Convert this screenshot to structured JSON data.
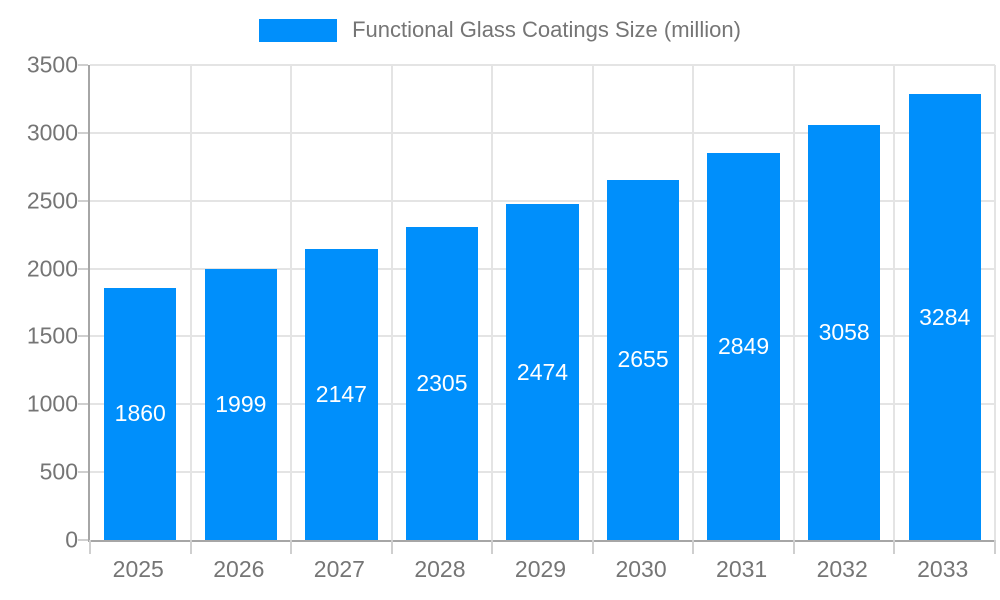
{
  "chart_data": {
    "type": "bar",
    "title": "Functional Glass Coatings Size (million)",
    "categories": [
      "2025",
      "2026",
      "2027",
      "2028",
      "2029",
      "2030",
      "2031",
      "2032",
      "2033"
    ],
    "values": [
      1860,
      1999,
      2147,
      2305,
      2474,
      2655,
      2849,
      3058,
      3284
    ],
    "xlabel": "",
    "ylabel": "",
    "ylim": [
      0,
      3500
    ],
    "yticks": [
      0,
      500,
      1000,
      1500,
      2000,
      2500,
      3000,
      3500
    ],
    "grid": "on",
    "legend_position": "top",
    "bar_width_fraction": 0.72,
    "colors": {
      "bar": "#008FFB",
      "grid": "#e4e4e4",
      "axis": "#a6a6a6",
      "tick": "#cfcfcf",
      "axis_label": "#757575",
      "value_label": "#ffffff"
    }
  }
}
